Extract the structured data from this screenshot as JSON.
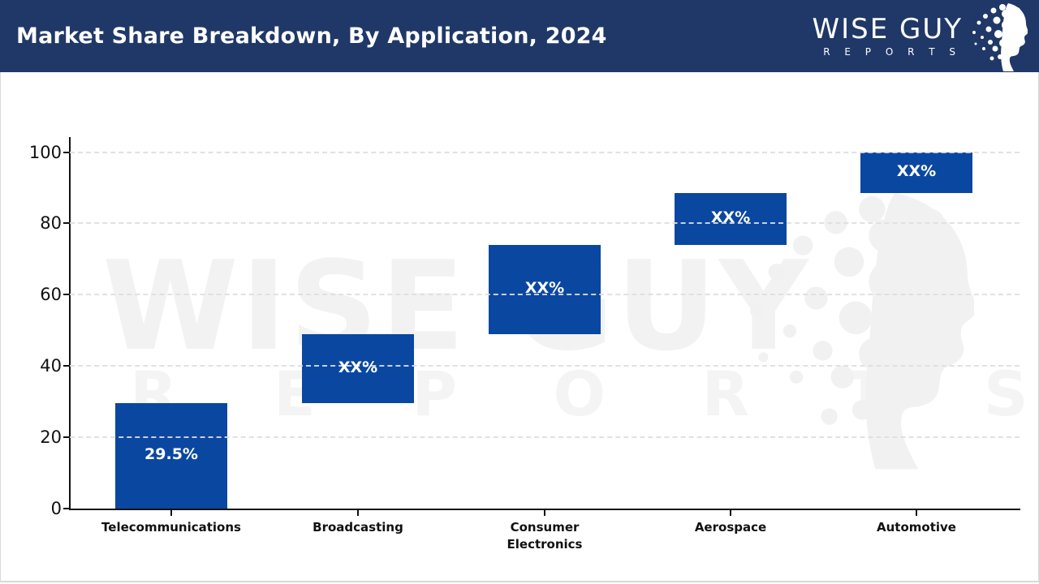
{
  "header": {
    "title": "Market Share Breakdown, By Application, 2024",
    "logo": {
      "name": "WISE GUY",
      "tagline": "R E P O R T S"
    }
  },
  "watermark": {
    "name": "WISE GUY",
    "tagline": "R E P O R T S"
  },
  "colors": {
    "header_bg": "#1f3867",
    "bar": "#0a47a1",
    "bar_label": "#ffffff",
    "grid": "#e0e0e0",
    "axis": "#111111",
    "watermark": "#f2f2f2"
  },
  "chart_data": {
    "type": "bar",
    "subtype": "waterfall",
    "title": "Market Share Breakdown, By Application, 2024",
    "categories": [
      "Telecommunications",
      "Broadcasting",
      "Consumer\nElectronics",
      "Aerospace",
      "Automotive"
    ],
    "segments": [
      {
        "category": "Telecommunications",
        "start": 0,
        "end": 29.5,
        "value_label": "29.5%"
      },
      {
        "category": "Broadcasting",
        "start": 29.5,
        "end": 49,
        "value_label": "XX%"
      },
      {
        "category": "Consumer Electronics",
        "start": 49,
        "end": 74,
        "value_label": "XX%"
      },
      {
        "category": "Aerospace",
        "start": 74,
        "end": 88.5,
        "value_label": "XX%"
      },
      {
        "category": "Automotive",
        "start": 88.5,
        "end": 100,
        "value_label": "XX%"
      }
    ],
    "yticks": [
      0,
      20,
      40,
      60,
      80,
      100
    ],
    "ylim": [
      0,
      105
    ],
    "xlabel": "",
    "ylabel": "",
    "grid": "horizontal-dashed",
    "legend": "none"
  }
}
